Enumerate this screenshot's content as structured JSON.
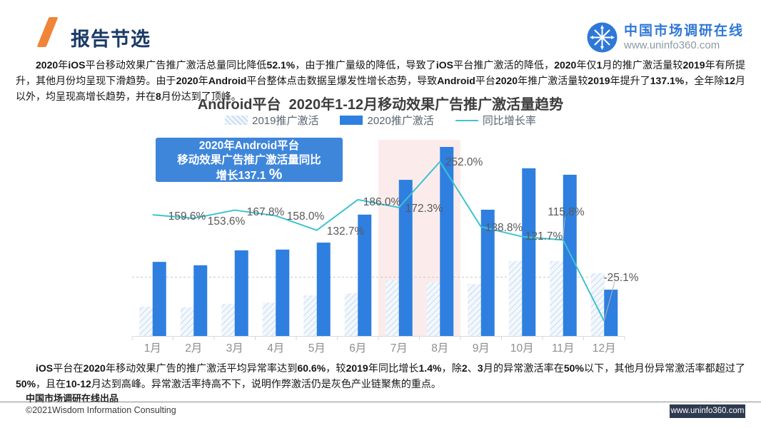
{
  "header": {
    "title": "报告节选"
  },
  "logo": {
    "name": "中国市场调研在线",
    "url": "www.uninfo360.com"
  },
  "paragraph_top": {
    "segments": [
      {
        "t": "2020",
        "b": true
      },
      {
        "t": "年",
        "b": false
      },
      {
        "t": "iOS",
        "b": true
      },
      {
        "t": "平台移动效果广告推广激活总量同比降低",
        "b": false
      },
      {
        "t": "52.1%",
        "b": true
      },
      {
        "t": "，由于推广量级的降低，导致了",
        "b": false
      },
      {
        "t": "iOS",
        "b": true
      },
      {
        "t": "平台推广激活的降低，",
        "b": false
      },
      {
        "t": "2020",
        "b": true
      },
      {
        "t": "年仅",
        "b": false
      },
      {
        "t": "1",
        "b": true
      },
      {
        "t": "月的推广激活量较",
        "b": false
      },
      {
        "t": "2019",
        "b": true
      },
      {
        "t": "年有所提升，其他月份均呈现下滑趋势。由于",
        "b": false
      },
      {
        "t": "2020",
        "b": true
      },
      {
        "t": "年",
        "b": false
      },
      {
        "t": "Android",
        "b": true
      },
      {
        "t": "平台整体点击数据呈爆发性增长态势，导致",
        "b": false
      },
      {
        "t": "Android",
        "b": true
      },
      {
        "t": "平台",
        "b": false
      },
      {
        "t": "2020",
        "b": true
      },
      {
        "t": "年推广激活量较",
        "b": false
      },
      {
        "t": "2019",
        "b": true
      },
      {
        "t": "年提升了",
        "b": false
      },
      {
        "t": "137.1%",
        "b": true
      },
      {
        "t": "，全年除",
        "b": false
      },
      {
        "t": "12",
        "b": true
      },
      {
        "t": "月以外，均呈现高增长趋势，并在",
        "b": false
      },
      {
        "t": "8",
        "b": true
      },
      {
        "t": "月份达到了顶峰。",
        "b": false
      }
    ]
  },
  "callout": {
    "line1": "2020年Android平台",
    "line2": "移动效果广告推广激活量同比",
    "line3": "增长137.1 ",
    "line3_suffix": "%"
  },
  "paragraph_bottom": {
    "segments": [
      {
        "t": "iOS",
        "b": true
      },
      {
        "t": "平台在",
        "b": false
      },
      {
        "t": "2020",
        "b": true
      },
      {
        "t": "年移动效果广告的推广激活平均异常率达到",
        "b": false
      },
      {
        "t": "60.6%",
        "b": true
      },
      {
        "t": "，较",
        "b": false
      },
      {
        "t": "2019",
        "b": true
      },
      {
        "t": "年同比增长",
        "b": false
      },
      {
        "t": "1.4%",
        "b": true
      },
      {
        "t": "，除",
        "b": false
      },
      {
        "t": "2",
        "b": true
      },
      {
        "t": "、",
        "b": false
      },
      {
        "t": "3",
        "b": true
      },
      {
        "t": "月的异常激活率在",
        "b": false
      },
      {
        "t": "50%",
        "b": true
      },
      {
        "t": "以下，其他月份异常激活率都超过了",
        "b": false
      },
      {
        "t": "50%",
        "b": true
      },
      {
        "t": "，且在",
        "b": false
      },
      {
        "t": "10-12",
        "b": true
      },
      {
        "t": "月达到高峰。异常激活率持高不下，说明作弊激活仍是灰色产业链聚焦的重点。",
        "b": false
      }
    ]
  },
  "footer": {
    "produced_by": "中国市场调研在线出品",
    "copyright": "©2021Wisdom Information Consulting",
    "site": "www.uninfo360.com"
  },
  "chart_data": {
    "type": "bar",
    "combo": "grouped bars + growth-rate line",
    "title": "Android平台  2020年1-12月移动效果广告推广激活量趋势",
    "categories": [
      "1月",
      "2月",
      "3月",
      "4月",
      "5月",
      "6月",
      "7月",
      "8月",
      "9月",
      "10月",
      "11月",
      "12月"
    ],
    "series": [
      {
        "name": "2019推广激活",
        "chart": "bar",
        "style": "hatched",
        "color": "#c9dcf2",
        "values": [
          15.5,
          15.1,
          17.0,
          17.7,
          21.5,
          22.6,
          29.4,
          28.3,
          27.5,
          39.6,
          39.6,
          33.2
        ]
      },
      {
        "name": "2020推广激活",
        "chart": "bar",
        "style": "solid",
        "color": "#2e7fdf",
        "values": [
          39.2,
          37.4,
          45.3,
          45.7,
          49.4,
          64.2,
          82.6,
          100.0,
          66.8,
          88.7,
          85.3,
          24.5
        ]
      },
      {
        "name": "同比增长率",
        "chart": "line",
        "color": "#3fc3cf",
        "unit": "%",
        "values": [
          159.6,
          153.6,
          167.8,
          158.0,
          132.7,
          186.0,
          172.3,
          252.0,
          138.8,
          121.7,
          115.8,
          -25.1
        ],
        "labels": [
          "159.6%",
          "153.6%",
          "167.8%",
          "158.0%",
          "132.7%",
          "186.0%",
          "172.3%",
          "252.0%",
          "138.8%",
          "121.7%",
          "115.8%",
          "-25.1%"
        ]
      }
    ],
    "highlight_region": {
      "categories": [
        "7月",
        "8月"
      ],
      "color": "#fbeceb"
    },
    "annotation": "2020年Android平台移动效果广告推广激活量同比增长137.1%",
    "values_note": "bar values are relative heights (max=100); chart shows no numeric y-axis",
    "ylim_bars": [
      0,
      105
    ],
    "legend_position": "top",
    "grid": "single dashed horizontal gridline"
  }
}
